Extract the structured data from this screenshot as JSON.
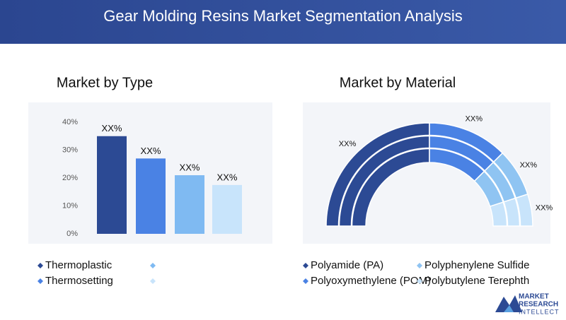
{
  "title": "Gear Molding Resins Market Segmentation Analysis",
  "chart_data": [
    {
      "type": "bar",
      "title": "Market by Type",
      "categories": [
        "Thermoplastic",
        "Thermosetting",
        null,
        null
      ],
      "values": [
        35,
        27,
        21,
        17.5
      ],
      "value_labels": [
        "XX%",
        "XX%",
        "XX%",
        "XX%"
      ],
      "colors": [
        "#2c4a94",
        "#4a82e4",
        "#7fbaf2",
        "#c8e4fb"
      ],
      "ylim": [
        0,
        40
      ],
      "yticks": [
        {
          "value": 0,
          "label": "0%"
        },
        {
          "value": 10,
          "label": "10%"
        },
        {
          "value": 20,
          "label": "20%"
        },
        {
          "value": 30,
          "label": "30%"
        },
        {
          "value": 40,
          "label": "40%"
        }
      ]
    },
    {
      "type": "pie",
      "title": "Market by Material",
      "categories": [
        "Polyamide (PA)",
        "Polyoxymethylene (POM)",
        "Polyphenylene Sulfide",
        "Polybutylene Terephth"
      ],
      "values": [
        50,
        25,
        15,
        10
      ],
      "value_labels": [
        "XX%",
        "XX%",
        "XX%",
        "XX%"
      ],
      "colors": [
        "#2c4a94",
        "#4a82e4",
        "#8fc4f2",
        "#c8e4fb"
      ]
    }
  ],
  "logo": [
    "MARKET",
    "RESEARCH",
    "INTELLECT"
  ]
}
